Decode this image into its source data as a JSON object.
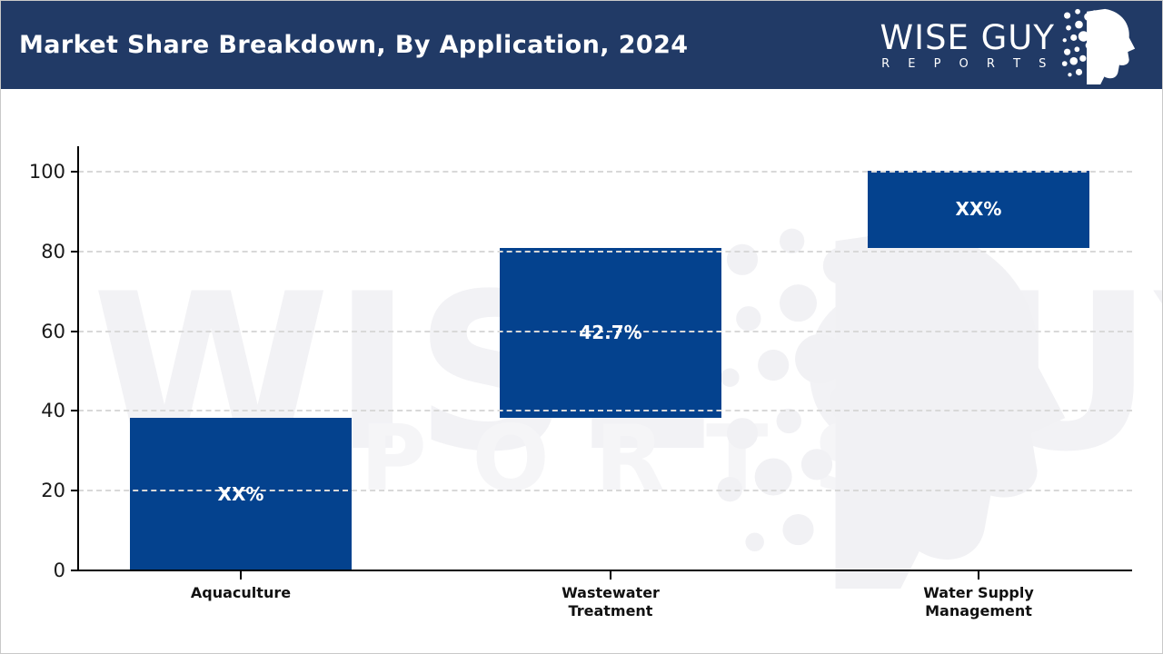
{
  "header": {
    "title": "Market Share Breakdown, By Application, 2024",
    "logo": {
      "line1": "WISE GUY",
      "line2": "R E P O R T S"
    }
  },
  "watermark": {
    "line1": "WISE GUY",
    "line2": "REPORTS"
  },
  "chart_data": {
    "type": "bar",
    "subtype": "waterfall",
    "title": "Market Share Breakdown, By Application, 2024",
    "categories": [
      {
        "name": "Aquaculture",
        "lines": [
          "Aquaculture"
        ]
      },
      {
        "name": "Wastewater Treatment",
        "lines": [
          "Wastewater",
          "Treatment"
        ]
      },
      {
        "name": "Water Supply Management",
        "lines": [
          "Water Supply",
          "Management"
        ]
      }
    ],
    "bars": [
      {
        "category": "Aquaculture",
        "start": 0,
        "end": 38,
        "value_label": "XX%"
      },
      {
        "category": "Wastewater Treatment",
        "start": 38,
        "end": 80.7,
        "value_label": "42.7%"
      },
      {
        "category": "Water Supply Management",
        "start": 80.7,
        "end": 100,
        "value_label": "XX%"
      }
    ],
    "yticks": [
      0,
      20,
      40,
      60,
      80,
      100
    ],
    "ylim": [
      0,
      106
    ],
    "xlabel": "",
    "ylabel": "",
    "grid": "horizontal-dashed",
    "legend": null,
    "colors": {
      "bar": "#04428E",
      "grid": "#d8d8d8",
      "axis": "#000000",
      "bar_label": "#ffffff",
      "header_bg": "#213A66",
      "watermark": "#f2f2f5"
    }
  }
}
